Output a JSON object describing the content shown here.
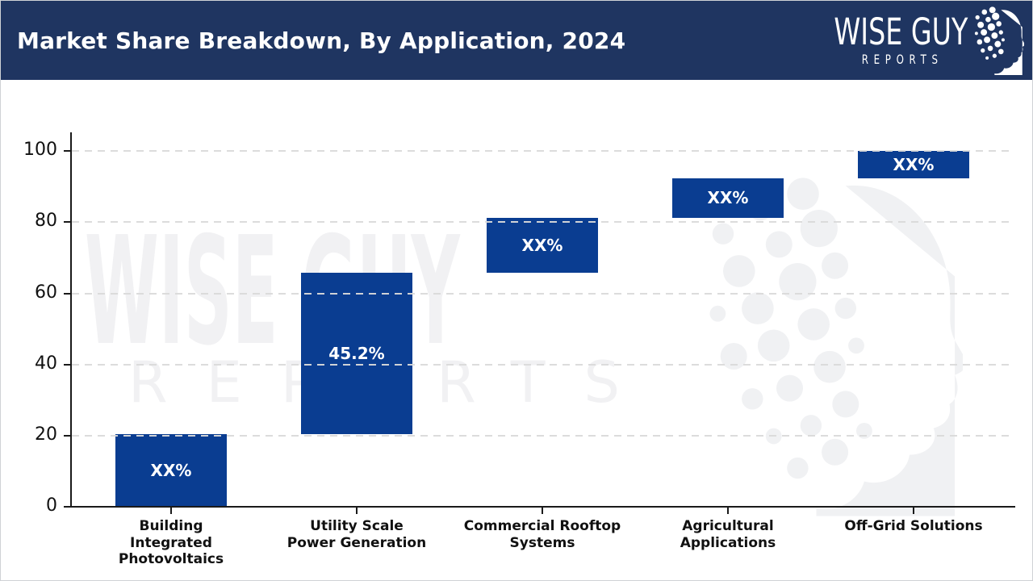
{
  "header": {
    "title": "Market Share Breakdown, By Application, 2024",
    "brand": {
      "name": "WISE GUY",
      "tagline": "REPORTS"
    }
  },
  "watermark": {
    "name": "WISE GUY",
    "tagline": "REPORTS"
  },
  "colors": {
    "header_bg": "#1f3561",
    "bar": "#0a3d91",
    "grid": "#dcdcdc",
    "axis": "#1a1a1a",
    "watermark": "#f1f1f3",
    "bar_label": "#ffffff"
  },
  "chart_data": {
    "type": "bar",
    "subtype": "waterfall",
    "title": "Market Share Breakdown, By Application, 2024",
    "xlabel": "",
    "ylabel": "",
    "ylim": [
      0,
      105
    ],
    "yticks": [
      0,
      20,
      40,
      60,
      80,
      100
    ],
    "grid": "horizontal dashed, drawn over bars",
    "legend": "none",
    "bar_color": "#0a3d91",
    "categories": [
      "Building Integrated Photovoltaics",
      "Utility Scale Power Generation",
      "Commercial Rooftop Systems",
      "Agricultural Applications",
      "Off-Grid Solutions"
    ],
    "bars": [
      {
        "category": "Building Integrated Photovoltaics",
        "tick_label": "Building\nIntegrated\nPhotovoltaics",
        "start": 0,
        "end": 20.5,
        "value": 20.5,
        "data_label": "XX%"
      },
      {
        "category": "Utility Scale Power Generation",
        "tick_label": "Utility Scale\nPower Generation",
        "start": 20.5,
        "end": 65.7,
        "value": 45.2,
        "data_label": "45.2%"
      },
      {
        "category": "Commercial Rooftop Systems",
        "tick_label": "Commercial Rooftop\nSystems",
        "start": 65.7,
        "end": 81.2,
        "value": 15.5,
        "data_label": "XX%"
      },
      {
        "category": "Agricultural Applications",
        "tick_label": "Agricultural\nApplications",
        "start": 81.2,
        "end": 92.4,
        "value": 11.2,
        "data_label": "XX%"
      },
      {
        "category": "Off-Grid Solutions",
        "tick_label": "Off-Grid Solutions",
        "start": 92.4,
        "end": 100,
        "value": 7.6,
        "data_label": "XX%"
      }
    ]
  }
}
